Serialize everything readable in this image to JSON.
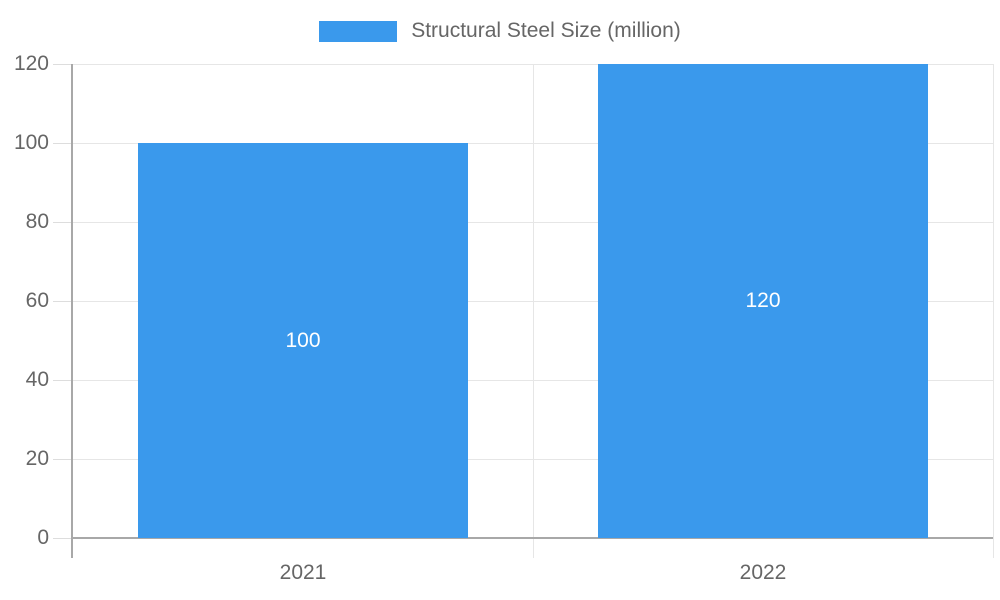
{
  "chart_data": {
    "type": "bar",
    "title": "",
    "xlabel": "",
    "ylabel": "",
    "categories": [
      "2021",
      "2022"
    ],
    "series": [
      {
        "name": "Structural Steel Size (million)",
        "values": [
          100,
          120
        ]
      }
    ],
    "bar_labels": [
      "100",
      "120"
    ],
    "ylim": [
      0,
      120
    ],
    "yticks": [
      0,
      20,
      40,
      60,
      80,
      100,
      120
    ],
    "grid": true,
    "legend_position": "top-center",
    "colors": {
      "bar": "#3a99ec",
      "bar_label_text": "#ffffff",
      "axis_text": "#666666",
      "gridline": "#e6e6e6",
      "tick": "#dddddd",
      "axis_line": "#a8a8a8"
    }
  }
}
